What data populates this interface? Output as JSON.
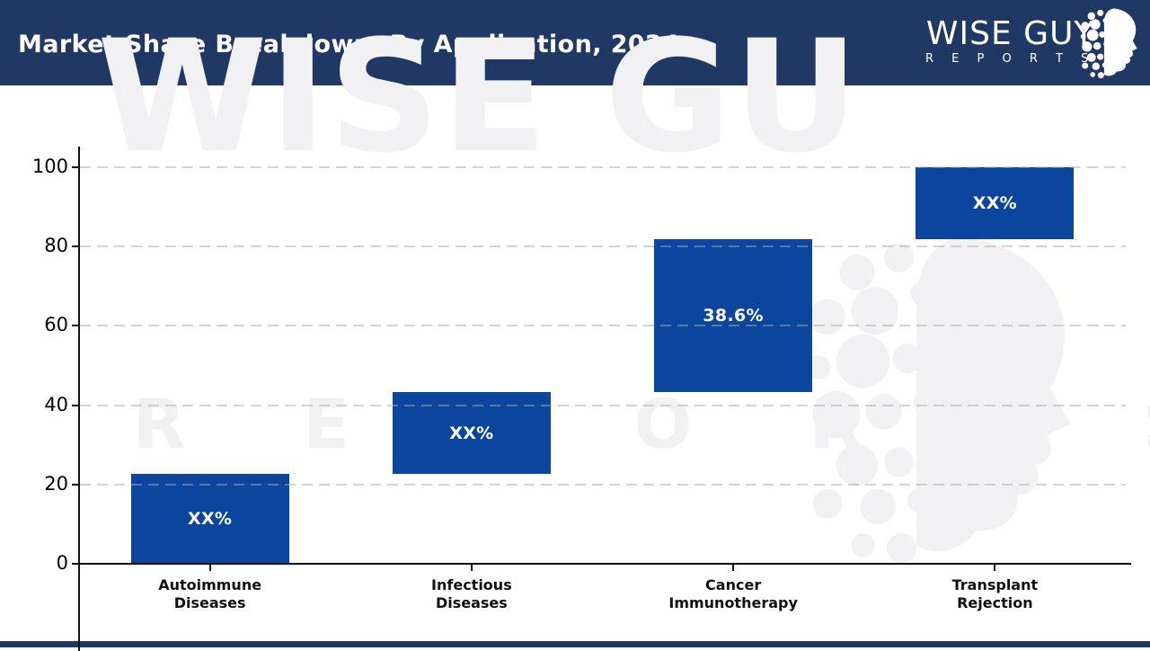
{
  "header": {
    "title": "Market Share Breakdown, By Application, 2024",
    "logo_line1": "WISE GUY",
    "logo_line2": "R E P O R T S"
  },
  "watermark": {
    "line1": "WISE GU",
    "line2": "R E P O R T S"
  },
  "colors": {
    "header_bg": "#1f3864",
    "footer_bg": "#1f3864",
    "bar": "#0c459d",
    "bar_label": "#ffffff",
    "watermark": "#f1f1f4",
    "grid_rgba": "rgba(170,170,170,0.5)",
    "axis": "#111111"
  },
  "chart_data": {
    "type": "bar",
    "subtype": "waterfall-floating-bars",
    "title": "Market Share Breakdown, By Application, 2024",
    "categories": [
      "Autoimmune Diseases",
      "Infectious Diseases",
      "Cancer Immunotherapy",
      "Transplant Rejection"
    ],
    "category_lines": [
      [
        "Autoimmune",
        "Diseases"
      ],
      [
        "Infectious",
        "Diseases"
      ],
      [
        "Cancer",
        "Immunotherapy"
      ],
      [
        "Transplant",
        "Rejection"
      ]
    ],
    "segments": [
      {
        "category": "Autoimmune Diseases",
        "start": 0,
        "end": 22.6,
        "label": "XX%"
      },
      {
        "category": "Infectious Diseases",
        "start": 22.6,
        "end": 43.2,
        "label": "XX%"
      },
      {
        "category": "Cancer Immunotherapy",
        "start": 43.2,
        "end": 81.8,
        "label": "38.6%"
      },
      {
        "category": "Transplant Rejection",
        "start": 81.8,
        "end": 100,
        "label": "XX%"
      }
    ],
    "ylim": [
      0,
      100
    ],
    "yticks": [
      0,
      20,
      40,
      60,
      80,
      100
    ],
    "xlabel": "",
    "ylabel": "",
    "grid": "dashed-horizontal",
    "legend": "none"
  }
}
